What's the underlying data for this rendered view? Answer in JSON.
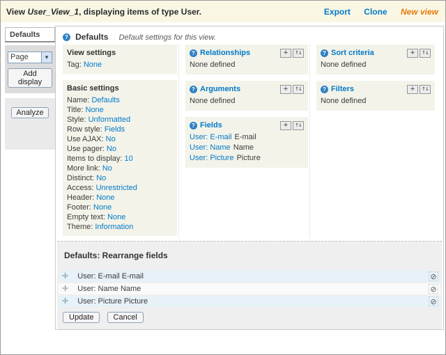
{
  "colors": {
    "link_blue": "#027ac6",
    "new_view_orange": "#e8790a",
    "topbar_bg": "#f9f7e4",
    "box_bg": "#f3f3ea",
    "row_highlight": "#e7f1f8"
  },
  "header": {
    "title_prefix": "View ",
    "view_name": "User_View_1",
    "title_suffix": ", displaying items of type User.",
    "links": {
      "export": "Export",
      "clone": "Clone",
      "new_view": "New view"
    }
  },
  "sidebar": {
    "tab_label": "Defaults",
    "display_select_value": "Page",
    "add_display_label": "Add display",
    "analyze_label": "Analyze"
  },
  "icons": {
    "help": "?",
    "add": "+",
    "rearrange": "↑↓",
    "drag": "✛",
    "remove": "⊘",
    "select_arrow": "▾"
  },
  "main": {
    "section_title": "Defaults",
    "section_description": "Default settings for this view.",
    "view_settings": {
      "title": "View settings",
      "rows": [
        {
          "label": "Tag:",
          "value": "None"
        }
      ]
    },
    "basic_settings": {
      "title": "Basic settings",
      "rows": [
        {
          "label": "Name:",
          "value": "Defaults"
        },
        {
          "label": "Title:",
          "value": "None"
        },
        {
          "label": "Style:",
          "value": "Unformatted"
        },
        {
          "label": "Row style:",
          "value": "Fields"
        },
        {
          "label": "Use AJAX:",
          "value": "No"
        },
        {
          "label": "Use pager:",
          "value": "No"
        },
        {
          "label": "Items to display:",
          "value": "10"
        },
        {
          "label": "More link:",
          "value": "No"
        },
        {
          "label": "Distinct:",
          "value": "No"
        },
        {
          "label": "Access:",
          "value": "Unrestricted"
        },
        {
          "label": "Header:",
          "value": "None"
        },
        {
          "label": "Footer:",
          "value": "None"
        },
        {
          "label": "Empty text:",
          "value": "None"
        },
        {
          "label": "Theme:",
          "value": "Information"
        }
      ]
    },
    "relationships": {
      "title": "Relationships",
      "empty": "None defined"
    },
    "arguments": {
      "title": "Arguments",
      "empty": "None defined"
    },
    "fields": {
      "title": "Fields",
      "items": [
        {
          "link": "User: E-mail",
          "label": "E-mail"
        },
        {
          "link": "User: Name",
          "label": "Name"
        },
        {
          "link": "User: Picture",
          "label": "Picture"
        }
      ]
    },
    "sort_criteria": {
      "title": "Sort criteria",
      "empty": "None defined"
    },
    "filters": {
      "title": "Filters",
      "empty": "None defined"
    }
  },
  "rearrange": {
    "title": "Defaults: Rearrange fields",
    "rows": [
      "User: E-mail E-mail",
      "User: Name Name",
      "User: Picture Picture"
    ],
    "update_label": "Update",
    "cancel_label": "Cancel"
  }
}
